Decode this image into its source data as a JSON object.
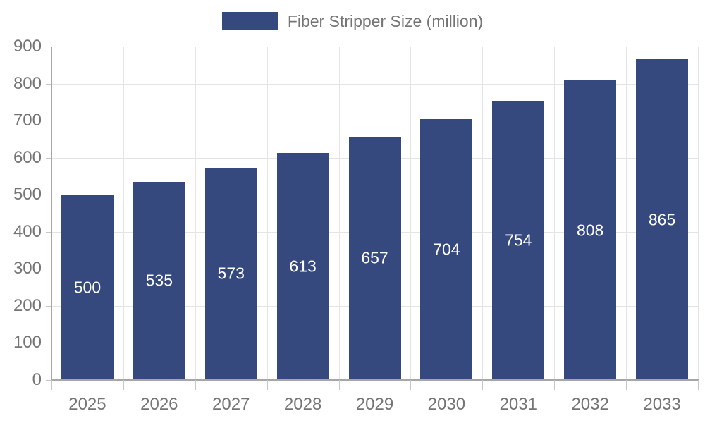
{
  "legend": {
    "label": "Fiber Stripper Size (million)",
    "swatch_color": "#35497F"
  },
  "chart_data": {
    "type": "bar",
    "title": "",
    "xlabel": "",
    "ylabel": "",
    "categories": [
      "2025",
      "2026",
      "2027",
      "2028",
      "2029",
      "2030",
      "2031",
      "2032",
      "2033"
    ],
    "values": [
      500,
      535,
      573,
      613,
      657,
      704,
      754,
      808,
      865
    ],
    "series_name": "Fiber Stripper Size (million)",
    "legend_entries": [
      "Fiber Stripper Size (million)"
    ],
    "legend_position": "top",
    "ylim": [
      0,
      900
    ],
    "ytick_step": 100,
    "ytick_labels": [
      "0",
      "100",
      "200",
      "300",
      "400",
      "500",
      "600",
      "700",
      "800",
      "900"
    ],
    "grid": true,
    "bar_color": "#35497F",
    "value_label_color": "#ffffff",
    "value_labels_inside": true
  },
  "colors": {
    "background": "#ffffff",
    "axis_line": "#a6a6a6",
    "grid_line": "#e4e4e4",
    "tick_mark": "#c6c6c6",
    "axis_text": "#757575"
  }
}
